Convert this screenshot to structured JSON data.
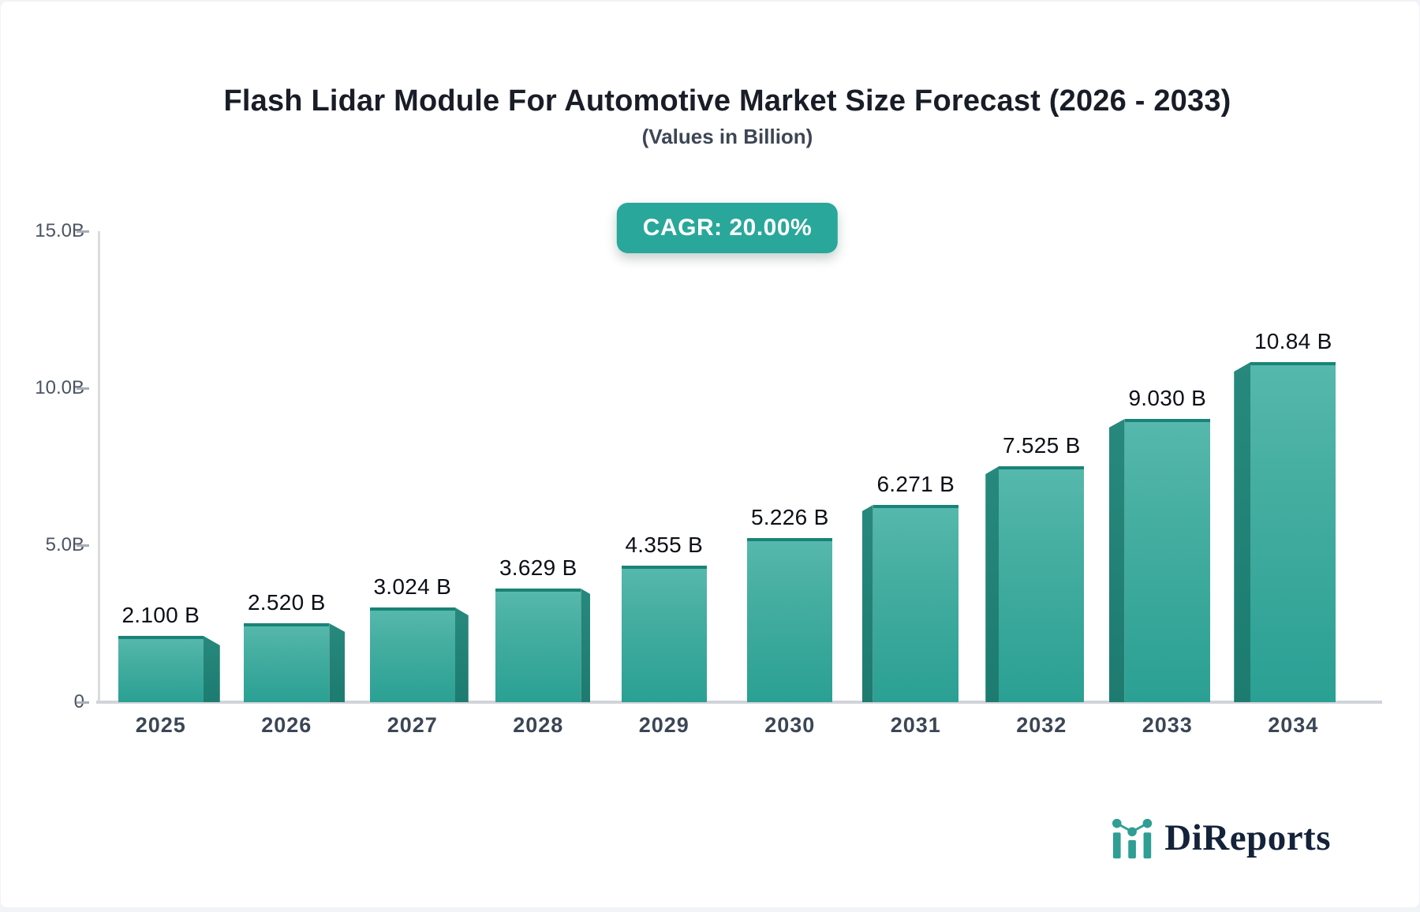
{
  "header": {
    "title": "Flash Lidar Module For Automotive Market Size Forecast (2026 - 2033)",
    "subtitle": "(Values in Billion)",
    "cagr_badge": "CAGR: 20.00%"
  },
  "chart_data": {
    "type": "bar",
    "title": "Flash Lidar Module For Automotive Market Size Forecast (2026 - 2033)",
    "subtitle": "(Values in Billion)",
    "annotation": "CAGR: 20.00%",
    "categories": [
      "2025",
      "2026",
      "2027",
      "2028",
      "2029",
      "2030",
      "2031",
      "2032",
      "2033",
      "2034"
    ],
    "values": [
      2.1,
      2.52,
      3.024,
      3.629,
      4.355,
      5.226,
      6.271,
      7.525,
      9.03,
      10.84
    ],
    "value_labels": [
      "2.100 B",
      "2.520 B",
      "3.024 B",
      "3.629 B",
      "4.355 B",
      "5.226 B",
      "6.271 B",
      "7.525 B",
      "9.030 B",
      "10.84 B"
    ],
    "xlabel": "",
    "ylabel": "",
    "ylim": [
      0,
      15
    ],
    "y_ticks": [
      {
        "label": "15.0B",
        "value": 15
      },
      {
        "label": "10.0B",
        "value": 10
      },
      {
        "label": "5.0B",
        "value": 5
      },
      {
        "label": "0",
        "value": 0
      }
    ],
    "grid": false,
    "legend": "none",
    "bar_style": "3d-perspective-teal"
  },
  "branding": {
    "logo_text": "DiReports"
  },
  "colors": {
    "accent_teal": "#2aa79b",
    "bar_gradient_top": "#56b8ac",
    "bar_gradient_bottom": "#2aa093",
    "bar_top_edge": "#1a8377",
    "bar_side_face": "#1f7e73",
    "axis_line": "#d6d8de",
    "tick_text": "#4a5462",
    "category_text": "#3b4655",
    "value_text": "#0c1016",
    "title_text": "#181d27",
    "logo_navy": "#14223a"
  }
}
